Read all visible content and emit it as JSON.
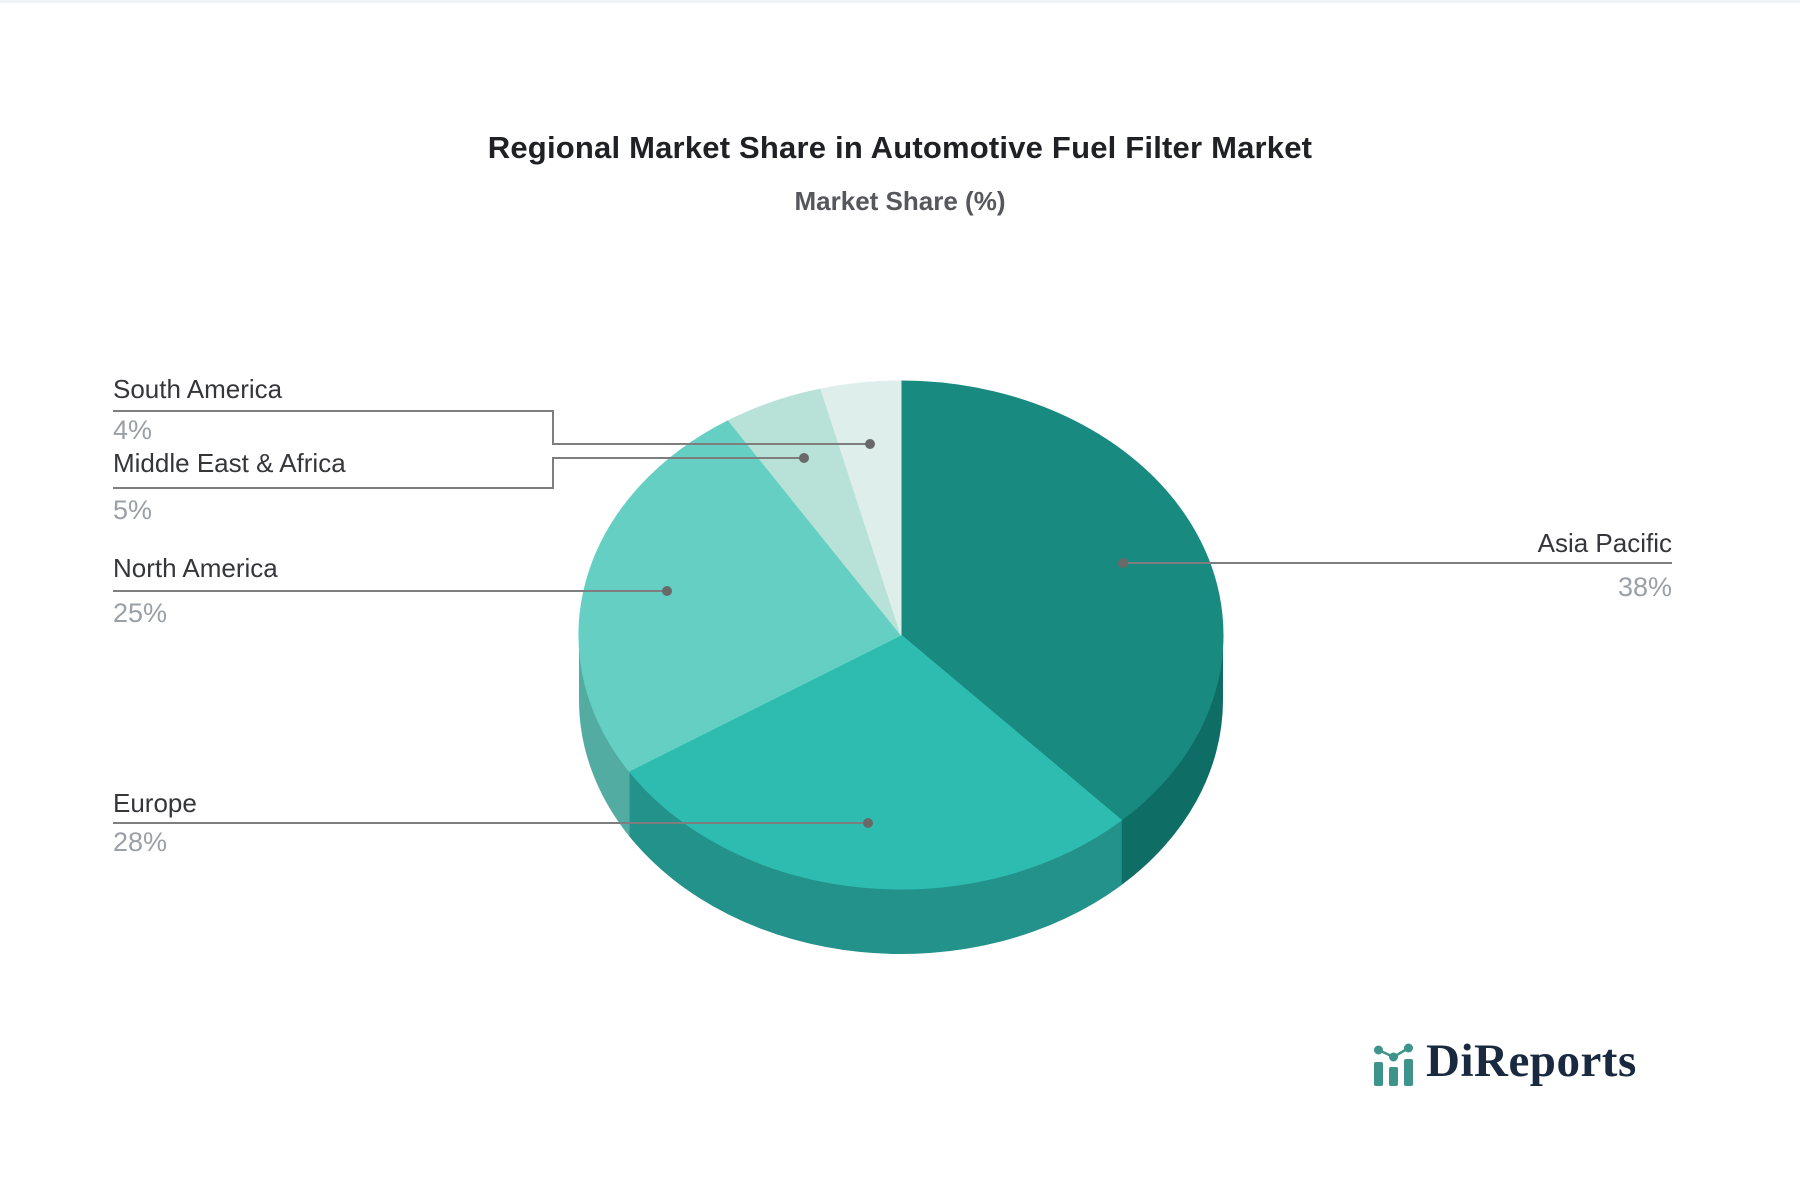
{
  "title": "Regional Market Share in Automotive Fuel Filter Market",
  "subtitle": "Market Share (%)",
  "chart_data": {
    "type": "pie",
    "style": "3d",
    "title": "Regional Market Share in Automotive Fuel Filter Market",
    "subtitle": "Market Share (%)",
    "unit": "%",
    "start_angle": "12-o-clock",
    "direction": "clockwise",
    "legend_position": "callout-labels",
    "slices": [
      {
        "label": "Asia Pacific",
        "value": 38,
        "display": "38%",
        "color": "#188a80",
        "side_color": "#0e6e66"
      },
      {
        "label": "Europe",
        "value": 28,
        "display": "28%",
        "color": "#2ebcb0",
        "side_color": "#23928a"
      },
      {
        "label": "North America",
        "value": 25,
        "display": "25%",
        "color": "#66cfc4",
        "side_color": "#53aca1"
      },
      {
        "label": "Middle East & Africa",
        "value": 5,
        "display": "5%",
        "color": "#b8e2d8"
      },
      {
        "label": "South America",
        "value": 4,
        "display": "4%",
        "color": "#deeeea"
      }
    ]
  },
  "watermark": {
    "brand": "DiReports",
    "icon": "bar-chart-logo-icon",
    "accent_color": "#3e948b",
    "text_color": "#182940"
  },
  "colors": {
    "background": "#ffffff",
    "title": "#202124",
    "subtitle": "#55575c",
    "label_text": "#35363a",
    "value_text": "#9ba0a6",
    "leader_line": "#7e7e7e",
    "dot": "#696969",
    "top_edge": "#eff2f7"
  }
}
